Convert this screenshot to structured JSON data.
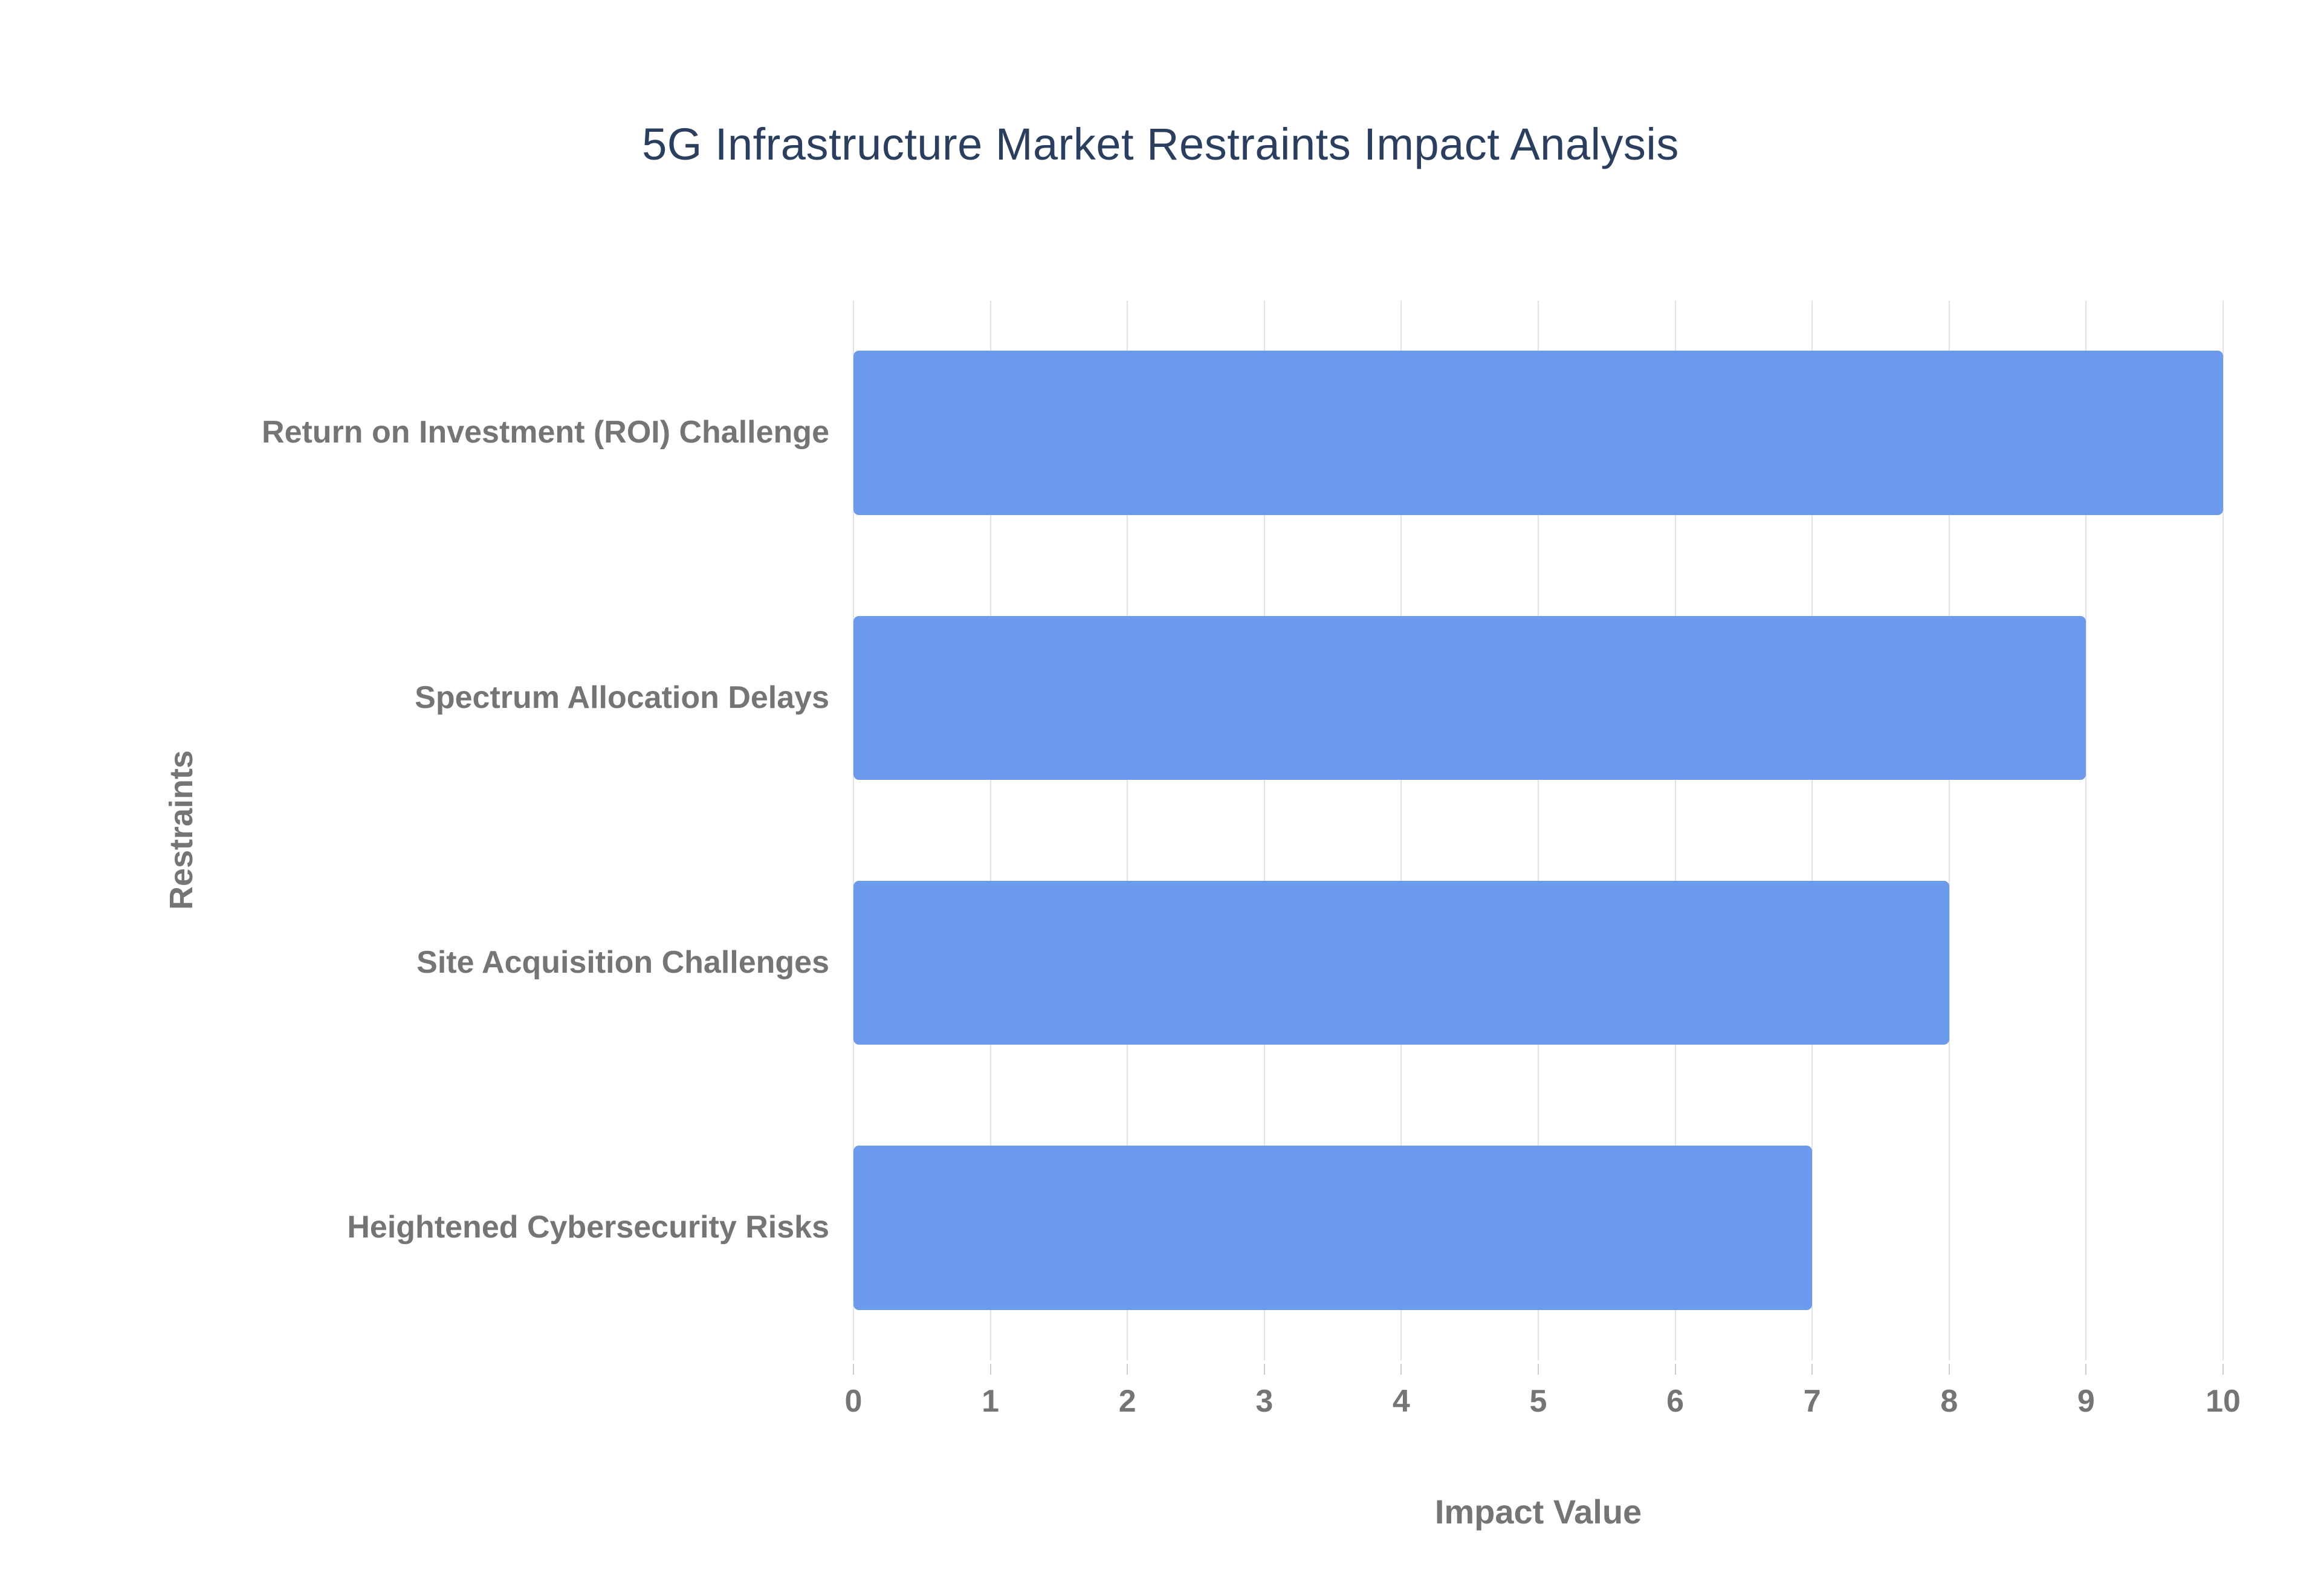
{
  "chart_data": {
    "type": "bar",
    "orientation": "horizontal",
    "title": "5G Infrastructure Market Restraints Impact Analysis",
    "categories": [
      "Return on Investment (ROI) Challenge",
      "Spectrum Allocation Delays",
      "Site Acquisition Challenges",
      "Heightened Cybersecurity Risks"
    ],
    "values": [
      10,
      9,
      8,
      7
    ],
    "xlabel": "Impact Value",
    "ylabel": "Restraints",
    "xlim": [
      0,
      10
    ],
    "xticks": [
      0,
      1,
      2,
      3,
      4,
      5,
      6,
      7,
      8,
      9,
      10
    ],
    "grid": true,
    "legend": "none",
    "bar_color": "#6c9bee",
    "title_color": "#2a3f5f",
    "axis_label_color": "#757575",
    "gridline_color": "#e3e3e3",
    "background_color": "#ffffff"
  }
}
